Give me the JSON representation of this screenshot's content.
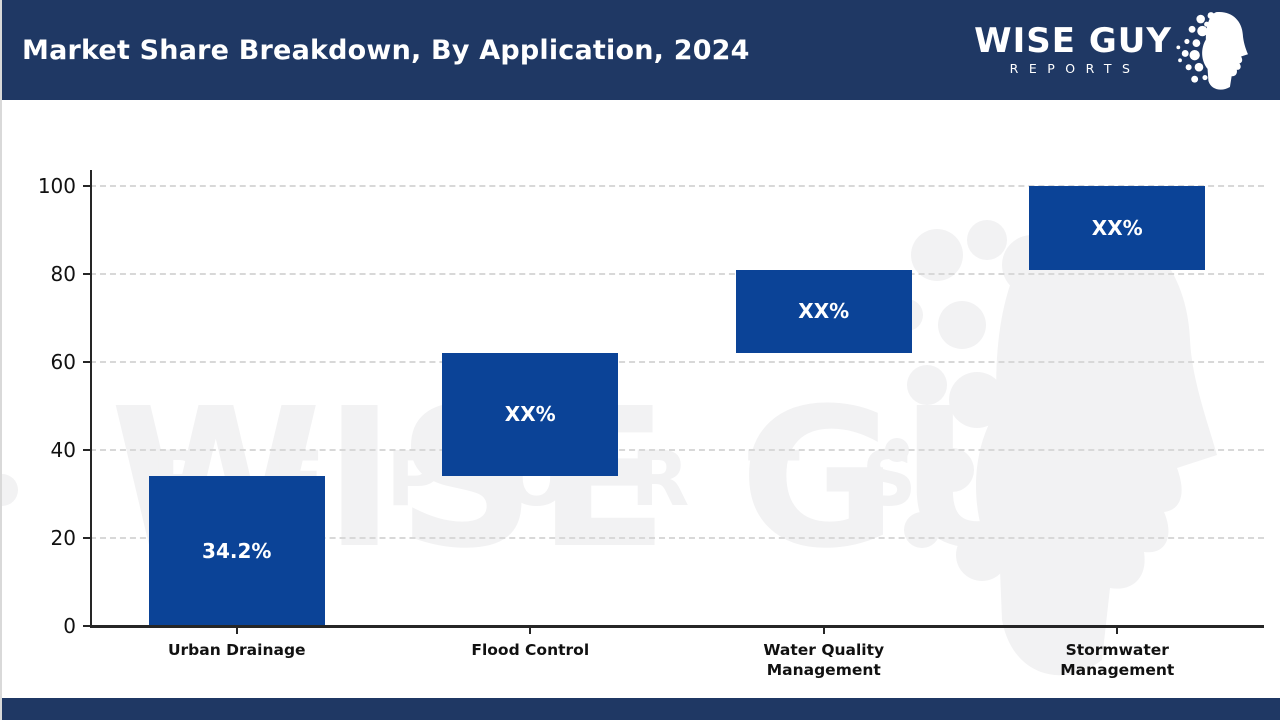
{
  "header": {
    "title": "Market Share Breakdown, By Application, 2024",
    "logo": {
      "line1": "WISE GUY",
      "line2": "REPORTS"
    }
  },
  "watermark": {
    "line1": "WISE GUY",
    "line2": "REPORTS"
  },
  "colors": {
    "header_bg": "#1f3864",
    "footer_bg": "#1f3864",
    "bar_fill": "#0b4397",
    "bar_label": "#ffffff",
    "watermark": "#f2f2f3",
    "grid": "#d8d8d8",
    "axis": "#262626",
    "text": "#111111"
  },
  "chart_data": {
    "type": "bar",
    "subtype": "waterfall-floating",
    "title": "Market Share Breakdown, By Application, 2024",
    "xlabel": "",
    "ylabel": "",
    "ylim": [
      0,
      100
    ],
    "yticks": [
      0,
      20,
      40,
      60,
      80,
      100
    ],
    "grid": true,
    "legend": "none",
    "categories": [
      "Urban Drainage",
      "Flood Control",
      "Water Quality Management",
      "Stormwater Management"
    ],
    "category_lines": [
      [
        "Urban Drainage"
      ],
      [
        "Flood Control"
      ],
      [
        "Water Quality",
        "Management"
      ],
      [
        "Stormwater",
        "Management"
      ]
    ],
    "bars": [
      {
        "category": "Urban Drainage",
        "start": 0,
        "end": 34.2,
        "label": "34.2%"
      },
      {
        "category": "Flood Control",
        "start": 34.2,
        "end": 62,
        "label": "XX%"
      },
      {
        "category": "Water Quality Management",
        "start": 62,
        "end": 81,
        "label": "XX%"
      },
      {
        "category": "Stormwater Management",
        "start": 81,
        "end": 100,
        "label": "XX%"
      }
    ]
  }
}
